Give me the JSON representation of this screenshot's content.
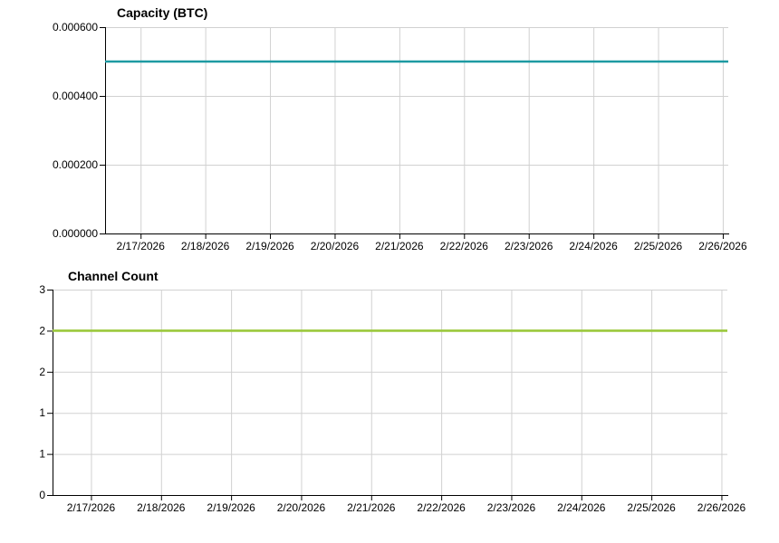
{
  "chart_data": [
    {
      "type": "line",
      "title": "Capacity (BTC)",
      "x": [
        "2/17/2026",
        "2/18/2026",
        "2/19/2026",
        "2/20/2026",
        "2/21/2026",
        "2/22/2026",
        "2/23/2026",
        "2/24/2026",
        "2/25/2026",
        "2/26/2026"
      ],
      "series": [
        {
          "name": "Capacity (BTC)",
          "values": [
            0.0005,
            0.0005,
            0.0005,
            0.0005,
            0.0005,
            0.0005,
            0.0005,
            0.0005,
            0.0005,
            0.0005
          ],
          "color": "#1d9aa2"
        }
      ],
      "ylim": [
        0,
        0.0006
      ],
      "y_tick_labels_top_to_bottom": [
        "0.000600",
        "0.000400",
        "0.000200",
        "0.000000"
      ],
      "xlabel": "",
      "ylabel": "",
      "grid": true,
      "legend": "none"
    },
    {
      "type": "line",
      "title": "Channel Count",
      "x": [
        "2/17/2026",
        "2/18/2026",
        "2/19/2026",
        "2/20/2026",
        "2/21/2026",
        "2/22/2026",
        "2/23/2026",
        "2/24/2026",
        "2/25/2026",
        "2/26/2026"
      ],
      "series": [
        {
          "name": "Channel Count",
          "values": [
            2,
            2,
            2,
            2,
            2,
            2,
            2,
            2,
            2,
            2
          ],
          "color": "#9bc83c"
        }
      ],
      "ylim": [
        0,
        2.5
      ],
      "y_tick_labels_top_to_bottom": [
        "3",
        "2",
        "2",
        "1",
        "1",
        "0"
      ],
      "xlabel": "",
      "ylabel": "",
      "grid": true,
      "legend": "none"
    }
  ],
  "style": {
    "grid_color": "#d1d1d1",
    "axis_color": "#000000",
    "tick_label_color": "#000000",
    "title_color": "#000000",
    "background_color": "#ffffff"
  }
}
